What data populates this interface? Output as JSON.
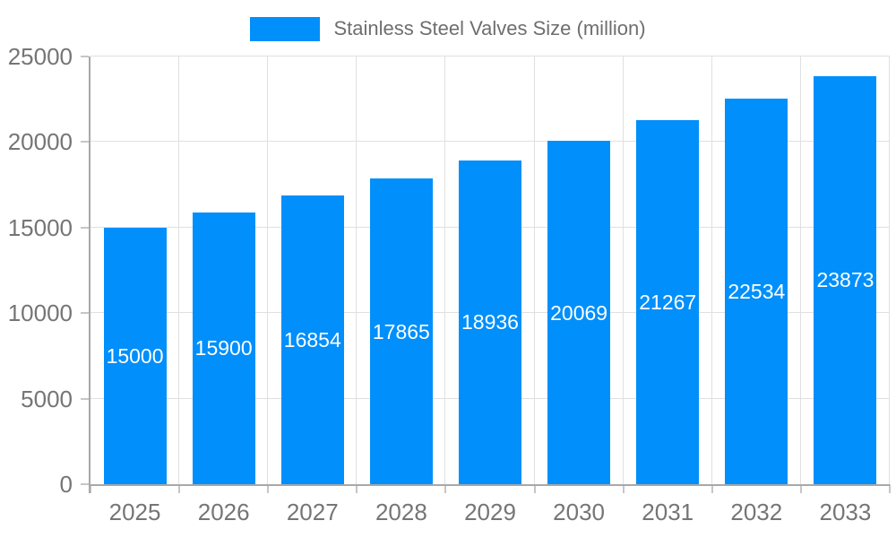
{
  "chart_data": {
    "type": "bar",
    "title": "",
    "legend": "Stainless Steel Valves Size (million)",
    "legend_position": "top-center",
    "categories": [
      "2025",
      "2026",
      "2027",
      "2028",
      "2029",
      "2030",
      "2031",
      "2032",
      "2033"
    ],
    "series": [
      {
        "name": "Stainless Steel Valves Size (million)",
        "values": [
          15000,
          15900,
          16854,
          17865,
          18936,
          20069,
          21267,
          22534,
          23873
        ]
      }
    ],
    "xlabel": "",
    "ylabel": "",
    "ylim": [
      0,
      25000
    ],
    "ytick_interval": 5000,
    "yticks": [
      0,
      5000,
      10000,
      15000,
      20000,
      25000
    ],
    "grid": true,
    "value_labels": "inside-center",
    "colors": {
      "bar": "#008ffb",
      "grid": "#e0e0e0",
      "axis": "#a8a8a8",
      "tick": "#c6c6c6",
      "axis_label": "#757575",
      "value_label": "#ffffff",
      "legend_label": "#6e6e6e"
    }
  }
}
